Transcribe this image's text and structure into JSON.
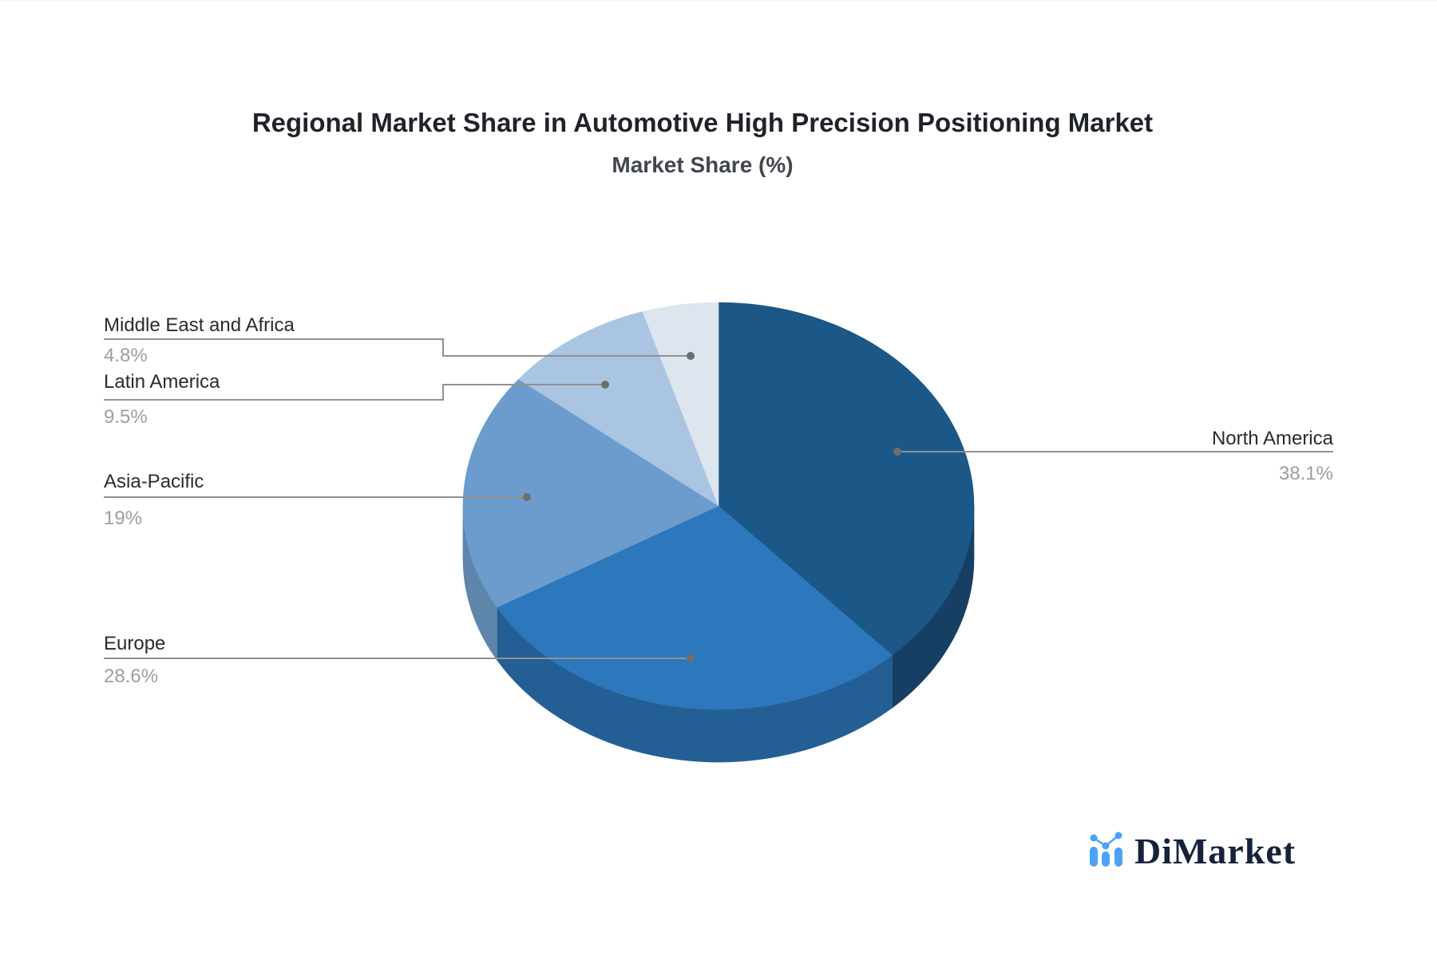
{
  "chart_data": {
    "type": "pie",
    "style": "3d",
    "title": "Regional Market Share in Automotive High Precision Positioning Market",
    "subtitle": "Market Share (%)",
    "unit": "%",
    "order": "clockwise-from-12-oclock",
    "legend_position": "callout-labels",
    "categories": [
      "North America",
      "Europe",
      "Asia-Pacific",
      "Latin America",
      "Middle East and Africa"
    ],
    "values": [
      38.1,
      28.6,
      19,
      9.5,
      4.8
    ],
    "slices": [
      {
        "label": "North America",
        "value": 38.1,
        "display": "38.1%",
        "color": "#1b5787",
        "side_color": "#173f63"
      },
      {
        "label": "Europe",
        "value": 28.6,
        "display": "28.6%",
        "color": "#2d77bd",
        "side_color": "#235f94"
      },
      {
        "label": "Asia-Pacific",
        "value": 19,
        "display": "19%",
        "color": "#6b9ccd",
        "side_color": "#5d86aa"
      },
      {
        "label": "Latin America",
        "value": 9.5,
        "display": "9.5%",
        "color": "#a9c5e1",
        "side_color": "#8aa7c4"
      },
      {
        "label": "Middle East and Africa",
        "value": 4.8,
        "display": "4.8%",
        "color": "#dde5ef",
        "side_color": "#b9c6d6"
      }
    ],
    "colors": {
      "connector_line": "#919191",
      "connector_dot": "#6e6e6e",
      "label_text": "#2b2b2b",
      "value_text": "#9e9e9e",
      "title_text": "#1f2329",
      "subtitle_text": "#42464e"
    }
  },
  "logo": {
    "text": "DiMarket",
    "icon": "bar-line-chart-icon",
    "accent": "#4aa3f7",
    "text_color": "#16213c"
  }
}
